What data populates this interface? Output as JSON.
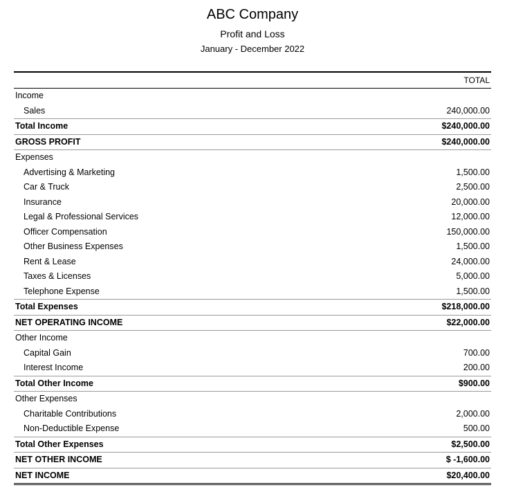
{
  "header": {
    "company": "ABC Company",
    "title": "Profit and Loss",
    "period": "January - December 2022"
  },
  "columns": {
    "label": "",
    "total": "TOTAL"
  },
  "income": {
    "header": "Income",
    "items": [
      {
        "label": "Sales",
        "amount": "240,000.00"
      }
    ],
    "total_label": "Total Income",
    "total_amount": "$240,000.00"
  },
  "gross_profit": {
    "label": "GROSS PROFIT",
    "amount": "$240,000.00"
  },
  "expenses": {
    "header": "Expenses",
    "items": [
      {
        "label": "Advertising & Marketing",
        "amount": "1,500.00"
      },
      {
        "label": "Car & Truck",
        "amount": "2,500.00"
      },
      {
        "label": "Insurance",
        "amount": "20,000.00"
      },
      {
        "label": "Legal & Professional Services",
        "amount": "12,000.00"
      },
      {
        "label": "Officer Compensation",
        "amount": "150,000.00"
      },
      {
        "label": "Other Business Expenses",
        "amount": "1,500.00"
      },
      {
        "label": "Rent & Lease",
        "amount": "24,000.00"
      },
      {
        "label": "Taxes & Licenses",
        "amount": "5,000.00"
      },
      {
        "label": "Telephone Expense",
        "amount": "1,500.00"
      }
    ],
    "total_label": "Total Expenses",
    "total_amount": "$218,000.00"
  },
  "net_operating": {
    "label": "NET OPERATING INCOME",
    "amount": "$22,000.00"
  },
  "other_income": {
    "header": "Other Income",
    "items": [
      {
        "label": "Capital Gain",
        "amount": "700.00"
      },
      {
        "label": "Interest Income",
        "amount": "200.00"
      }
    ],
    "total_label": "Total Other Income",
    "total_amount": "$900.00"
  },
  "other_expenses": {
    "header": "Other Expenses",
    "items": [
      {
        "label": "Charitable Contributions",
        "amount": "2,000.00"
      },
      {
        "label": "Non-Deductible Expense",
        "amount": "500.00"
      }
    ],
    "total_label": "Total Other Expenses",
    "total_amount": "$2,500.00"
  },
  "net_other": {
    "label": "NET OTHER INCOME",
    "amount": "$ -1,600.00"
  },
  "net_income": {
    "label": "NET INCOME",
    "amount": "$20,400.00"
  }
}
